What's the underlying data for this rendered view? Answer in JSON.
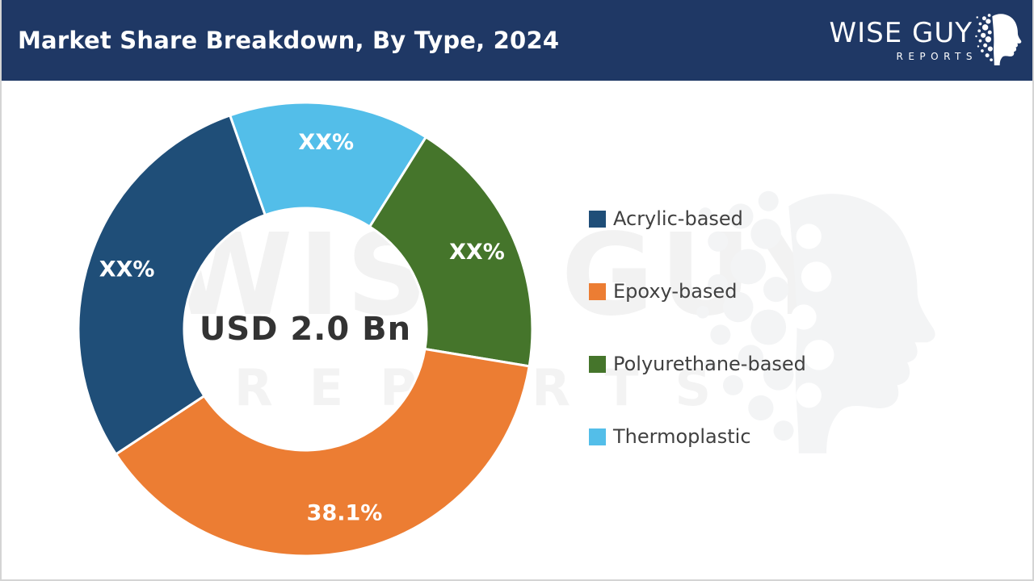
{
  "header": {
    "title": "Market Share Breakdown, By Type, 2024",
    "background_color": "#1F3865",
    "logo": {
      "wordmark": "WISE GUY",
      "reports": "REPORTS"
    }
  },
  "watermark": {
    "wordmark": "WISE GUY",
    "reports": "REPORTS"
  },
  "chart_data": {
    "type": "pie",
    "subtype": "donut",
    "title": "Market Share Breakdown, By Type, 2024",
    "center_label": "USD 2.0 Bn",
    "total_value": "USD 2.0 Bn",
    "start_angle_deg": 109.4,
    "direction": "clockwise",
    "separator_color": "#ffffff",
    "label_color": "#ffffff",
    "segments": [
      {
        "name": "Thermoplastic",
        "value_pct": 14.3,
        "label": "XX%",
        "color": "#53BEE9"
      },
      {
        "name": "Polyurethane-based",
        "value_pct": 18.7,
        "label": "XX%",
        "color": "#45752B"
      },
      {
        "name": "Epoxy-based",
        "value_pct": 38.1,
        "label": "38.1%",
        "color": "#EC7D33"
      },
      {
        "name": "Acrylic-based",
        "value_pct": 28.9,
        "label": "XX%",
        "color": "#1F4E78"
      }
    ],
    "legend": {
      "position": "right",
      "items": [
        "Acrylic-based",
        "Epoxy-based",
        "Polyurethane-based",
        "Thermoplastic"
      ]
    }
  }
}
